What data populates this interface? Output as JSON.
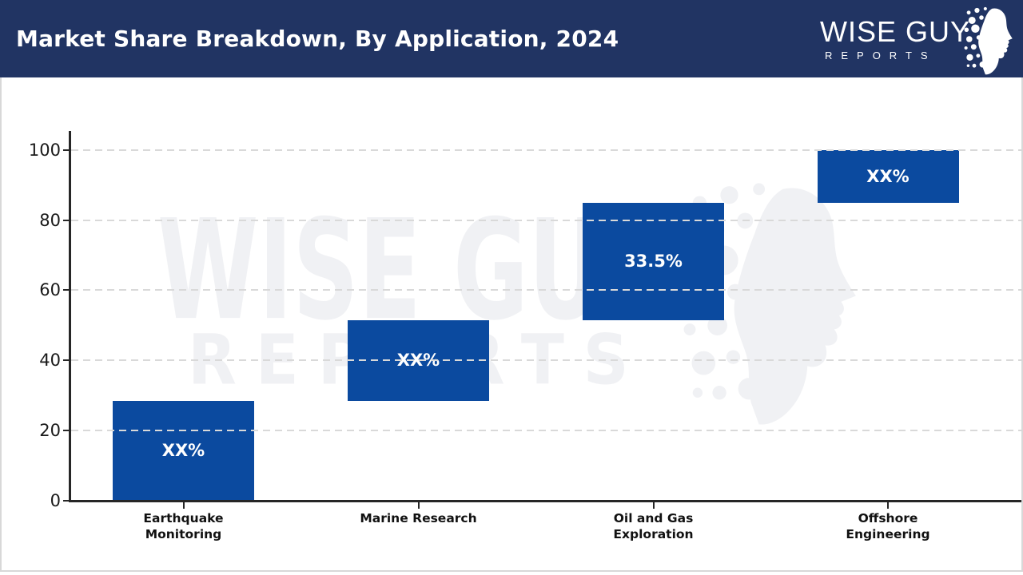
{
  "header": {
    "title": "Market Share Breakdown, By Application, 2024",
    "logo": {
      "line1": "WISE GUY",
      "line2": "REPORTS",
      "head_icon": "dotted-head-profile-icon"
    }
  },
  "watermark": {
    "line1": "WISE GUY",
    "line2": "REPORTS",
    "head_icon": "dotted-head-profile-icon"
  },
  "chart_data": {
    "type": "bar",
    "variant": "floating-segment waterfall-style bars",
    "title": "Market Share Breakdown, By Application, 2024",
    "categories": [
      "Earthquake Monitoring",
      "Marine Research",
      "Oil and Gas Exploration",
      "Offshore Engineering"
    ],
    "category_label_lines": [
      [
        "Earthquake",
        "Monitoring"
      ],
      [
        "Marine Research"
      ],
      [
        "Oil and Gas",
        "Exploration"
      ],
      [
        "Offshore",
        "Engineering"
      ]
    ],
    "bars": [
      {
        "category": "Earthquake Monitoring",
        "start": 0,
        "end": 28.5,
        "label": "XX%"
      },
      {
        "category": "Marine Research",
        "start": 28.5,
        "end": 51.5,
        "label": "XX%"
      },
      {
        "category": "Oil and Gas Exploration",
        "start": 51.5,
        "end": 85,
        "label": "33.5%"
      },
      {
        "category": "Offshore Engineering",
        "start": 85,
        "end": 100,
        "label": "XX%"
      }
    ],
    "xlabel": "",
    "ylabel": "",
    "ylim": [
      0,
      100
    ],
    "yticks": [
      0,
      20,
      40,
      60,
      80,
      100
    ],
    "legend": "none",
    "grid": "horizontal dashed, drawn over bars",
    "bar_color": "#0b4a9f"
  },
  "colors": {
    "header_bg": "#213463",
    "bar": "#0b4a9f",
    "grid": "#d9d9d9",
    "axis": "#262626",
    "watermark": "#f0f1f4",
    "frame_border": "#d8d8d8",
    "tick_text": "#1a1a1a",
    "title_text": "#ffffff",
    "bar_label_text": "#ffffff"
  }
}
